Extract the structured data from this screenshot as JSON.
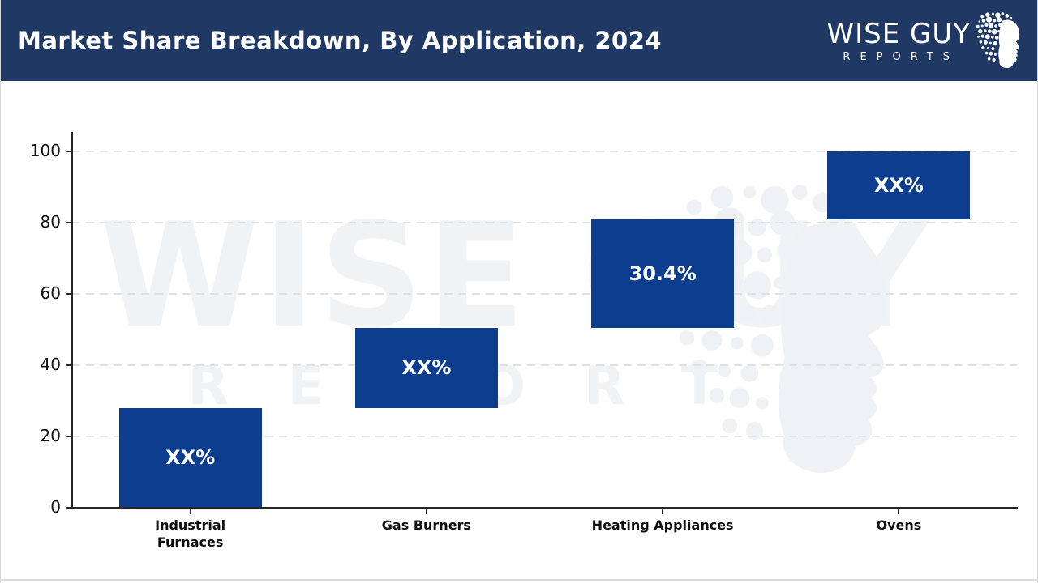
{
  "header": {
    "title": "Market Share Breakdown, By Application, 2024",
    "logo": {
      "line1": "WISE GUY",
      "line2": "REPORTS"
    }
  },
  "watermark": {
    "line1": "WISE GUY",
    "line2": "REPORTS"
  },
  "colors": {
    "header_bg": "#1F3864",
    "bar": "#0C3D8E",
    "grid": "#E1E1E1",
    "axis": "#262626",
    "bar_label": "#FFFFFF",
    "watermark": "#F1F2F4"
  },
  "chart_data": {
    "type": "bar",
    "variant": "waterfall (floating stacked-percent bars)",
    "title": "Market Share Breakdown, By Application, 2024",
    "categories": [
      "Industrial\nFurnaces",
      "Gas Burners",
      "Heating Appliances",
      "Ovens"
    ],
    "series": [
      {
        "name": "Market share (%)",
        "segments": [
          {
            "category": "Industrial Furnaces",
            "from": 0,
            "to": 28,
            "label": "XX%"
          },
          {
            "category": "Gas Burners",
            "from": 28,
            "to": 50.5,
            "label": "XX%"
          },
          {
            "category": "Heating Appliances",
            "from": 50.5,
            "to": 80.9,
            "label": "30.4%"
          },
          {
            "category": "Ovens",
            "from": 80.9,
            "to": 100,
            "label": "XX%"
          }
        ]
      }
    ],
    "xlabel": "",
    "ylabel": "",
    "ylim": [
      0,
      100
    ],
    "yticks": [
      0,
      20,
      40,
      60,
      80,
      100
    ],
    "grid": "horizontal, dashed, light gray",
    "legend": false,
    "bar_color": "#0C3D8E",
    "bar_label_color": "#FFFFFF"
  }
}
